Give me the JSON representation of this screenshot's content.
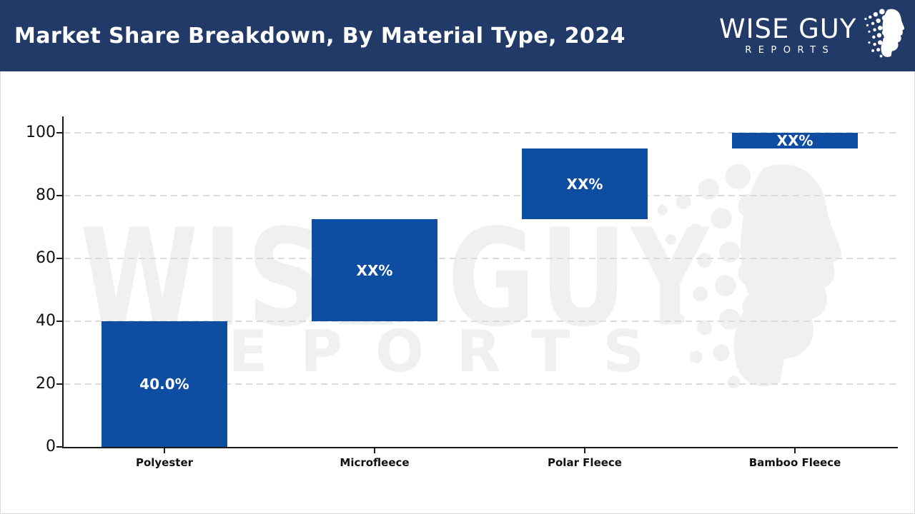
{
  "header": {
    "title": "Market Share Breakdown, By Material Type, 2024",
    "logo": {
      "line1": "WISE GUY",
      "line2": "REPORTS"
    }
  },
  "watermark": {
    "line1": "WISE GUY",
    "line2": "REPORTS"
  },
  "chart_data": {
    "type": "bar",
    "subtype": "waterfall",
    "title": "Market Share Breakdown, By Material Type, 2024",
    "categories": [
      "Polyester",
      "Microfleece",
      "Polar Fleece",
      "Bamboo Fleece"
    ],
    "values": [
      40,
      32.5,
      22.5,
      5
    ],
    "cumulative_start": [
      0,
      40,
      72.5,
      95
    ],
    "cumulative_end": [
      40,
      72.5,
      95,
      100
    ],
    "bar_labels": [
      "40.0%",
      "XX%",
      "XX%",
      "XX%"
    ],
    "ylim": [
      0,
      105
    ],
    "yticks": [
      0,
      20,
      40,
      60,
      80,
      100
    ],
    "grid": "horizontal-dashed",
    "legend_position": "none",
    "bar_color": "#0d4da2",
    "bar_label_color": "#ffffff"
  },
  "colors": {
    "header_bg": "#213a67",
    "bar": "#0d4da2",
    "watermark": "#f0f0f0",
    "gridline": "#dcdcdc",
    "axis": "#1a1a1a",
    "page_border": "#d9d9d9"
  }
}
